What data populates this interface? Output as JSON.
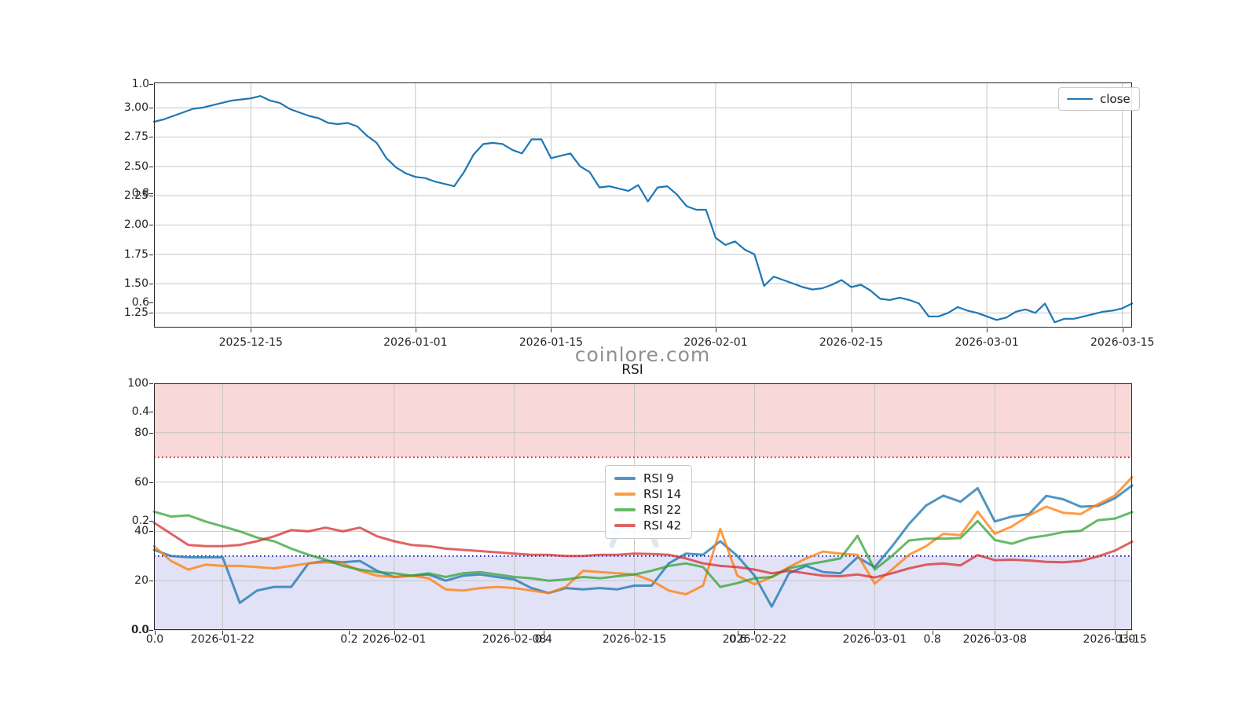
{
  "watermark": {
    "text": "coinlore.com",
    "color": "#7d7d7d",
    "logo_color": "#bcd7ec"
  },
  "overlay_axis": {
    "x_values": [
      0.0,
      0.2,
      0.4,
      0.6,
      0.8,
      1.0
    ],
    "y_values": [
      1.0,
      0.8,
      0.6,
      0.4,
      0.2,
      0.0
    ]
  },
  "chart_data": [
    {
      "type": "line",
      "title": "",
      "legend": [
        "close"
      ],
      "legend_position": "upper right",
      "grid": true,
      "x_range": [
        "2025-12-05",
        "2026-03-16"
      ],
      "ylim": [
        1.125,
        3.215
      ],
      "x_ticks": [
        "2025-12-15",
        "2026-01-01",
        "2026-01-15",
        "2026-02-01",
        "2026-02-15",
        "2026-03-01",
        "2026-03-15"
      ],
      "y_ticks": [
        3.0,
        2.75,
        2.5,
        2.25,
        2.0,
        1.75,
        1.5,
        1.25
      ],
      "y_tick_labels": [
        "3.00",
        "2.75",
        "2.50",
        "2.25",
        "2.00",
        "1.75",
        "1.50",
        "1.25"
      ],
      "series": [
        {
          "name": "close",
          "color": "#1f77b4",
          "width": 2.2,
          "start": "2025-12-05",
          "values": [
            2.88,
            2.9,
            2.93,
            2.96,
            2.99,
            3.0,
            3.02,
            3.04,
            3.06,
            3.07,
            3.08,
            3.1,
            3.06,
            3.04,
            2.99,
            2.96,
            2.93,
            2.91,
            2.87,
            2.86,
            2.87,
            2.84,
            2.76,
            2.7,
            2.57,
            2.49,
            2.44,
            2.41,
            2.4,
            2.37,
            2.35,
            2.33,
            2.45,
            2.6,
            2.69,
            2.7,
            2.69,
            2.64,
            2.61,
            2.73,
            2.73,
            2.57,
            2.59,
            2.61,
            2.5,
            2.45,
            2.32,
            2.33,
            2.31,
            2.29,
            2.34,
            2.2,
            2.32,
            2.33,
            2.26,
            2.16,
            2.13,
            2.13,
            1.89,
            1.83,
            1.86,
            1.79,
            1.75,
            1.48,
            1.56,
            1.53,
            1.5,
            1.47,
            1.45,
            1.46,
            1.49,
            1.53,
            1.47,
            1.49,
            1.44,
            1.37,
            1.36,
            1.38,
            1.36,
            1.33,
            1.22,
            1.22,
            1.25,
            1.3,
            1.27,
            1.25,
            1.22,
            1.19,
            1.21,
            1.26,
            1.28,
            1.25,
            1.33,
            1.17,
            1.2,
            1.2,
            1.22,
            1.24,
            1.26,
            1.27,
            1.29,
            1.33
          ]
        }
      ]
    },
    {
      "type": "line",
      "title": "RSI",
      "legend": [
        "RSI 9",
        "RSI 14",
        "RSI 22",
        "RSI 42"
      ],
      "legend_position": "center",
      "grid": true,
      "logo": true,
      "x_range": [
        "2026-01-18",
        "2026-03-16"
      ],
      "ylim": [
        0,
        100
      ],
      "x_ticks": [
        "2026-01-22",
        "2026-02-01",
        "2026-02-08",
        "2026-02-15",
        "2026-02-22",
        "2026-03-01",
        "2026-03-08",
        "2026-03-15"
      ],
      "y_ticks": [
        100,
        80,
        60,
        40,
        20,
        0
      ],
      "y_tick_labels": [
        "100",
        "80",
        "60",
        "40",
        "20",
        "0.0"
      ],
      "bands": [
        {
          "from": 70,
          "to": 100,
          "color": "#f9d8d8",
          "meaning": "overbought"
        },
        {
          "from": 0,
          "to": 30,
          "color": "#e2e2f6",
          "meaning": "oversold"
        }
      ],
      "hlines": [
        {
          "value": 70,
          "color": "#dc143c",
          "style": "dotted"
        },
        {
          "value": 30,
          "color": "#1414b8",
          "style": "dotted"
        }
      ],
      "series": [
        {
          "name": "RSI 9",
          "color": "rgba(31,119,180,0.78)",
          "width": 3,
          "start": "2026-01-18",
          "values": [
            32.5,
            30,
            29.5,
            29.5,
            29.5,
            11,
            16,
            17.5,
            17.5,
            27,
            28,
            27.5,
            28,
            24,
            21.5,
            22,
            22.5,
            20,
            22,
            22.5,
            21.5,
            20.5,
            17,
            15,
            17,
            16.5,
            17,
            16.5,
            18,
            18,
            27,
            31,
            30.5,
            36,
            30,
            22,
            9.5,
            23,
            26,
            23.5,
            23,
            29.5,
            25.5,
            33.8,
            43,
            50.5,
            54.5,
            52,
            57.5,
            44,
            46,
            47,
            54.4,
            53,
            50,
            50.3,
            53.4,
            58.6
          ]
        },
        {
          "name": "RSI 14",
          "color": "rgba(255,127,14,0.78)",
          "width": 3,
          "start": "2026-01-18",
          "values": [
            34,
            28,
            24.5,
            26.5,
            26,
            26,
            25.5,
            25,
            26,
            27,
            27.5,
            27,
            24,
            22,
            21.5,
            22,
            21,
            16.5,
            16,
            17,
            17.5,
            17,
            16,
            15,
            17.5,
            24,
            23.5,
            23,
            22.5,
            20,
            16,
            14.5,
            18,
            41,
            22,
            18.5,
            21.5,
            25.5,
            29,
            31.8,
            31,
            30.5,
            18.8,
            24.5,
            30.5,
            34,
            39,
            38.5,
            48,
            39,
            42,
            46.5,
            50,
            47.5,
            47,
            51,
            54.5,
            62
          ]
        },
        {
          "name": "RSI 22",
          "color": "rgba(44,160,44,0.72)",
          "width": 3,
          "start": "2026-01-18",
          "values": [
            48,
            46,
            46.5,
            44,
            42,
            40,
            37.5,
            36,
            33,
            30.5,
            28.5,
            26,
            24.5,
            23.5,
            23,
            22,
            23,
            21.5,
            23,
            23.5,
            22.5,
            21.5,
            21,
            20,
            20.5,
            21.5,
            21,
            21.8,
            22.5,
            24,
            26,
            27,
            25.5,
            17.5,
            19,
            21,
            21.5,
            25,
            26.5,
            27.7,
            29,
            38.2,
            24.5,
            30,
            36.3,
            37,
            37,
            37.3,
            44.2,
            36.5,
            35,
            37.3,
            38.3,
            39.7,
            40.2,
            44.5,
            45.2,
            47.8
          ]
        },
        {
          "name": "RSI 42",
          "color": "rgba(214,39,40,0.72)",
          "width": 3,
          "start": "2026-01-18",
          "values": [
            43.5,
            39,
            34.5,
            34,
            34,
            34.5,
            36,
            38,
            40.5,
            40,
            41.5,
            40,
            41.5,
            38,
            36,
            34.5,
            34,
            33,
            32.5,
            32,
            31.5,
            31,
            30.5,
            30.5,
            30,
            30,
            30.5,
            30.5,
            31,
            30.8,
            30.5,
            29,
            27,
            26,
            25.5,
            24.5,
            23,
            24,
            23,
            22,
            21.8,
            22.5,
            21.3,
            23,
            25,
            26.5,
            27,
            26.2,
            30.4,
            28.3,
            28.5,
            28.2,
            27.6,
            27.5,
            28,
            29.8,
            32.2,
            35.8
          ]
        }
      ]
    }
  ]
}
